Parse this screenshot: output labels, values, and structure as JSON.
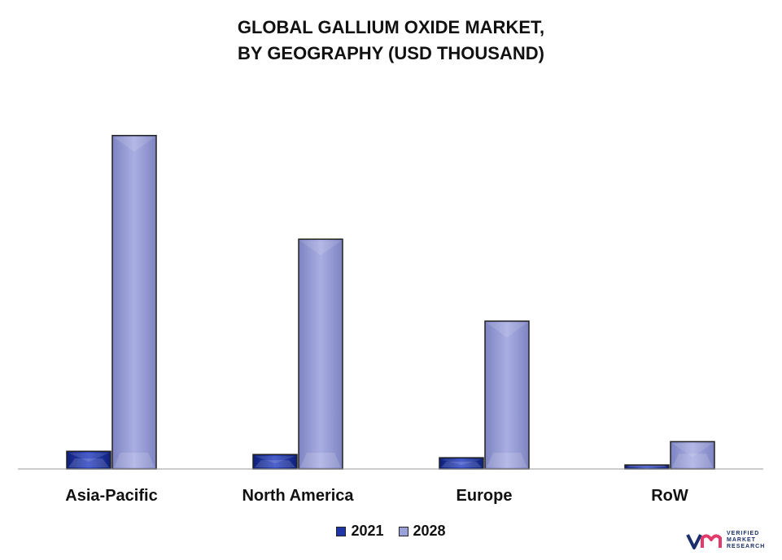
{
  "chart_data": {
    "type": "bar",
    "title_lines": [
      "GLOBAL GALLIUM OXIDE MARKET,",
      "BY GEOGRAPHY (USD THOUSAND)"
    ],
    "categories": [
      "Asia-Pacific",
      "North America",
      "Europe",
      "RoW"
    ],
    "series": [
      {
        "name": "2021",
        "values": [
          22,
          18,
          14,
          5
        ],
        "color": "#1f35a6"
      },
      {
        "name": "2028",
        "values": [
          415,
          286,
          184,
          34
        ],
        "color": "#9aa0d8"
      }
    ],
    "ylim": [
      0,
      440
    ],
    "grid": false,
    "legend_position": "bottom-center"
  },
  "brand": {
    "logo_icon": "vmr-logo-icon",
    "lines": [
      "VERIFIED",
      "MARKET",
      "RESEARCH"
    ],
    "color": "#1b2f6b"
  }
}
